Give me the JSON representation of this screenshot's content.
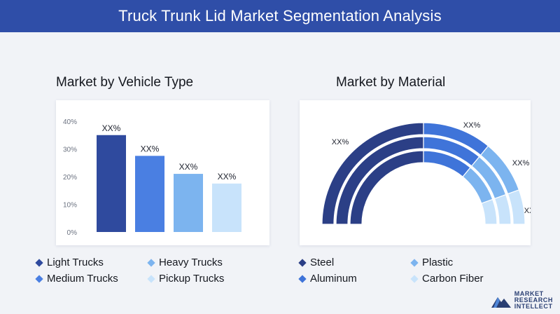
{
  "title": "Truck Trunk Lid Market Segmentation Analysis",
  "left_panel": {
    "title": "Market by Vehicle Type",
    "legend": [
      {
        "label": "Light Trucks",
        "color": "#2f4a9e"
      },
      {
        "label": "Heavy Trucks",
        "color": "#7cb4ef"
      },
      {
        "label": "Medium Trucks",
        "color": "#4a7fe2"
      },
      {
        "label": "Pickup Trucks",
        "color": "#c8e3fb"
      }
    ]
  },
  "right_panel": {
    "title": "Market by Material",
    "legend": [
      {
        "label": "Steel",
        "color": "#2b3f86"
      },
      {
        "label": "Plastic",
        "color": "#7cb4ef"
      },
      {
        "label": "Aluminum",
        "color": "#3f74d9"
      },
      {
        "label": "Carbon Fiber",
        "color": "#c8e3fb"
      }
    ]
  },
  "logo": {
    "line1": "MARKET",
    "line2": "RESEARCH",
    "line3": "INTELLECT"
  },
  "chart_data": [
    {
      "type": "bar",
      "title": "Market by Vehicle Type",
      "categories": [
        "Light Trucks",
        "Medium Trucks",
        "Heavy Trucks",
        "Pickup Trucks"
      ],
      "values": [
        35,
        27.5,
        21,
        17.5
      ],
      "data_labels": [
        "XX%",
        "XX%",
        "XX%",
        "XX%"
      ],
      "colors": [
        "#2f4a9e",
        "#4a7fe2",
        "#7cb4ef",
        "#c8e3fb"
      ],
      "ylim": [
        0,
        40
      ],
      "yticks": [
        "0%",
        "10%",
        "20%",
        "30%",
        "40%"
      ],
      "grid": false
    },
    {
      "type": "pie",
      "variant": "semicircle-donut",
      "title": "Market by Material",
      "categories": [
        "Steel",
        "Aluminum",
        "Plastic",
        "Carbon Fiber"
      ],
      "values": [
        50,
        22,
        17,
        11
      ],
      "data_labels": [
        "XX%",
        "XX%",
        "XX%",
        "XX%"
      ],
      "colors": [
        "#2b3f86",
        "#3f74d9",
        "#7cb4ef",
        "#c8e3fb"
      ]
    }
  ]
}
